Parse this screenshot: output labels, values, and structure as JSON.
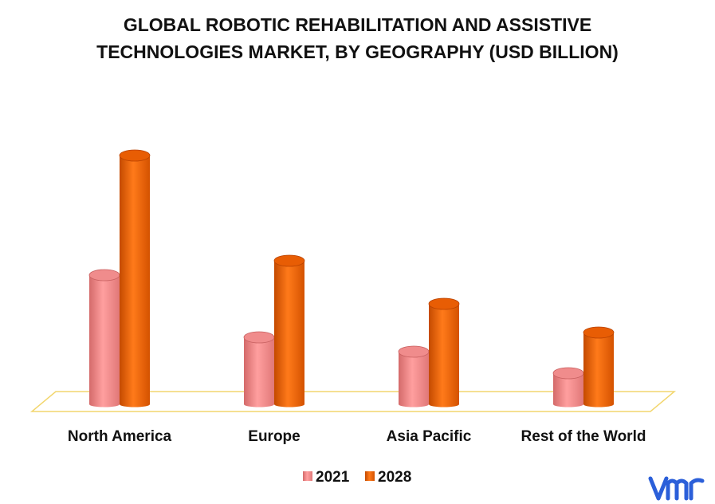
{
  "chart_data": {
    "type": "bar",
    "title_lines": [
      "GLOBAL ROBOTIC REHABILITATION AND ASSISTIVE",
      "TECHNOLOGIES MARKET, BY GEOGRAPHY (USD BILLION)"
    ],
    "xlabel": "",
    "ylabel": "",
    "categories": [
      "North America",
      "Europe",
      "Asia Pacific",
      "Rest of the World"
    ],
    "series": [
      {
        "name": "2021",
        "values": [
          5.4,
          2.8,
          2.2,
          1.3
        ],
        "color": "#f08c8c"
      },
      {
        "name": "2028",
        "values": [
          10.4,
          6.0,
          4.2,
          3.0
        ],
        "color": "#e85d04"
      }
    ],
    "ylim": [
      0,
      11
    ],
    "grid": false,
    "legend_position": "bottom",
    "floor_color": "#f2d66e"
  },
  "logo": {
    "text": "vmr",
    "color": "#2b5fd9"
  }
}
